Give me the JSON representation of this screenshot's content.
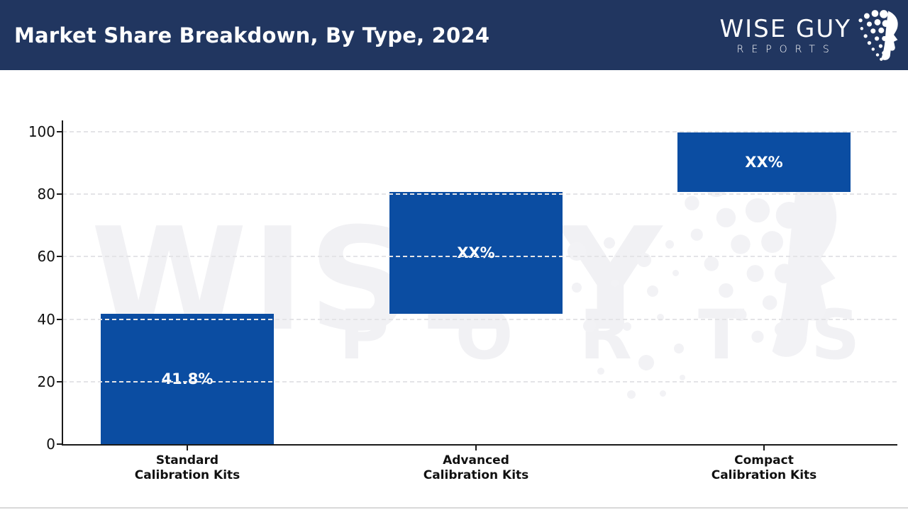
{
  "header": {
    "title": "Market Share Breakdown, By Type, 2024",
    "logo_text": "WISE GUY",
    "logo_subtext": "REPORTS"
  },
  "watermark": {
    "text_large": "WISE",
    "text_right": "Y",
    "text_bottom": "P O R T S"
  },
  "chart_data": {
    "type": "bar",
    "variant": "waterfall",
    "title": "Market Share Breakdown, By Type, 2024",
    "xlabel": "",
    "ylabel": "",
    "ylim": [
      0,
      103.6
    ],
    "yticks": [
      0,
      20,
      40,
      60,
      80,
      100
    ],
    "grid": "horizontal-dashed",
    "legend": "none",
    "bar_color": "#0b4da2",
    "bar_label_color": "#ffffff",
    "categories": [
      "Standard\nCalibration Kits",
      "Advanced\nCalibration Kits",
      "Compact\nCalibration Kits"
    ],
    "segments": [
      {
        "category": "Standard Calibration Kits",
        "start": 0,
        "end": 41.8,
        "label": "41.8%"
      },
      {
        "category": "Advanced Calibration Kits",
        "start": 41.8,
        "end": 80.8,
        "label": "XX%"
      },
      {
        "category": "Compact Calibration Kits",
        "start": 80.8,
        "end": 99.8,
        "label": "XX%"
      }
    ]
  }
}
